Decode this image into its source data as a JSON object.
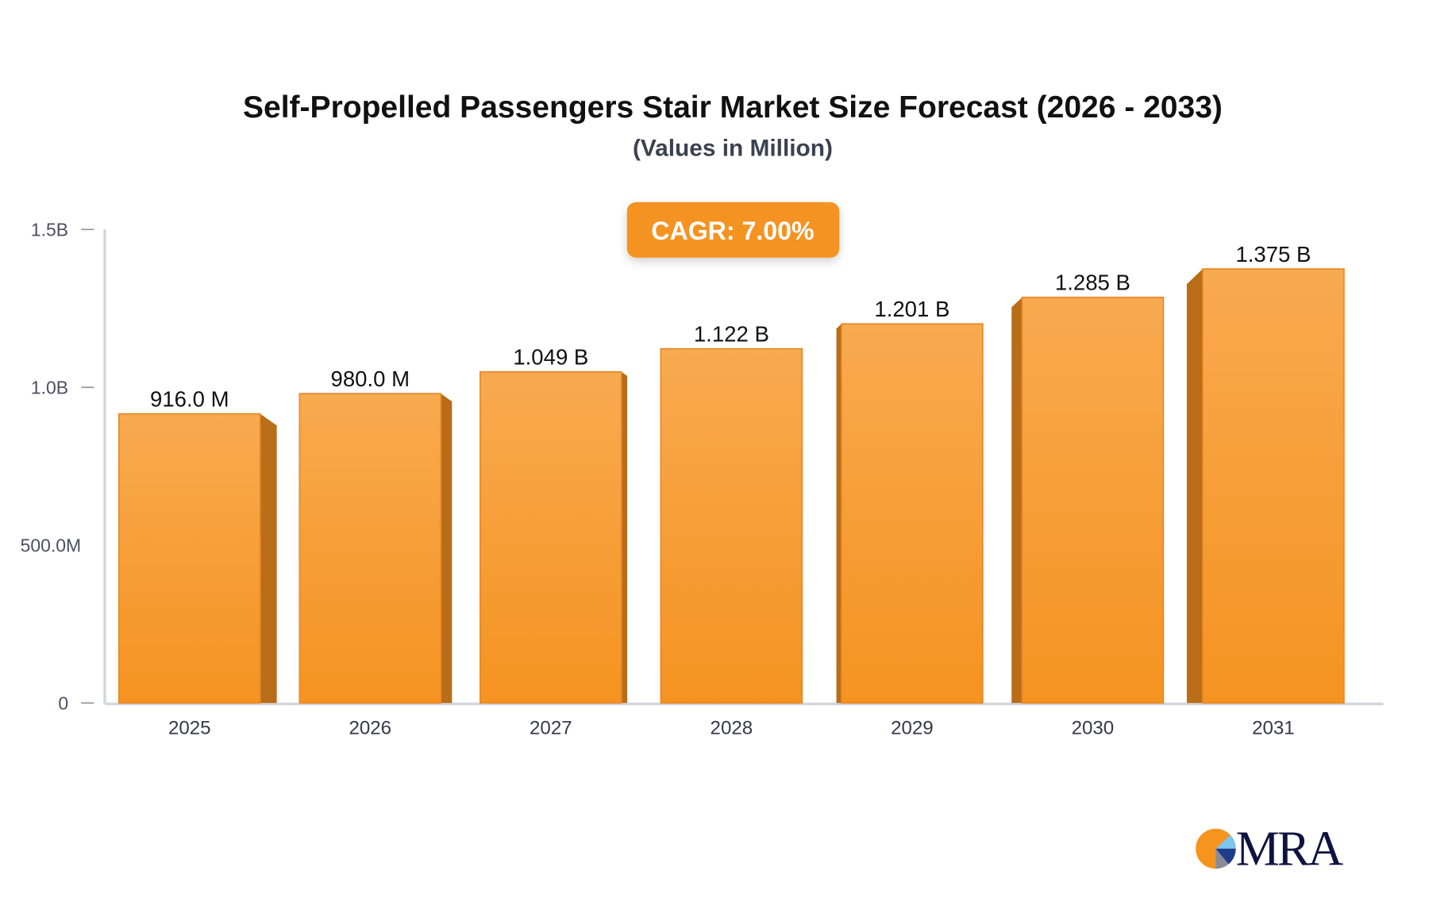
{
  "chart_data": {
    "type": "bar",
    "title": "Self-Propelled Passengers Stair Market Size Forecast (2026 - 2033)",
    "subtitle": "(Values in Million)",
    "badge": "CAGR: 7.00%",
    "categories": [
      "2025",
      "2026",
      "2027",
      "2028",
      "2029",
      "2030",
      "2031"
    ],
    "values": [
      916.0,
      980.0,
      1049,
      1122,
      1201,
      1285,
      1375
    ],
    "value_labels": [
      "916.0 M",
      "980.0 M",
      "1.049 B",
      "1.122 B",
      "1.201 B",
      "1.285 B",
      "1.375 B"
    ],
    "ylim": [
      0,
      1500
    ],
    "yticks": [
      0,
      500,
      1000,
      1500
    ],
    "ytick_labels": [
      "0",
      "500.0M",
      "1.0B",
      "1.5B"
    ],
    "grid": false,
    "colors": {
      "bar_top": "#f8aa50",
      "bar_bottom": "#f59320",
      "bar_side": "#b96d18",
      "axis": "#d4d6de",
      "badge": "#f59320"
    }
  },
  "logo": {
    "text": "MRA"
  }
}
